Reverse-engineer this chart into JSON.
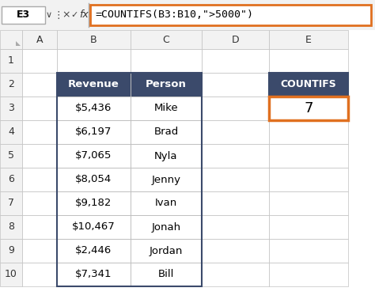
{
  "formula_bar_cell": "E3",
  "formula_bar_text": "=COUNTIFS(B3:B10,\">5000\")",
  "col_headers": [
    "A",
    "B",
    "C",
    "D",
    "E"
  ],
  "row_numbers": [
    "1",
    "2",
    "3",
    "4",
    "5",
    "6",
    "7",
    "8",
    "9",
    "10"
  ],
  "table_header_row": 2,
  "table_headers": [
    "Revenue",
    "Person"
  ],
  "table_col_b": [
    "$5,436",
    "$6,197",
    "$7,065",
    "$8,054",
    "$9,182",
    "$10,467",
    "$2,446",
    "$7,341"
  ],
  "table_col_c": [
    "Mike",
    "Brad",
    "Nyla",
    "Jenny",
    "Ivan",
    "Jonah",
    "Jordan",
    "Bill"
  ],
  "countifs_label": "COUNTIFS",
  "countifs_value": "7",
  "header_bg": "#3B4A6B",
  "header_fg": "#FFFFFF",
  "cell_bg": "#FFFFFF",
  "grid_color": "#C0C0C0",
  "row_header_bg": "#F2F2F2",
  "formula_bar_bg": "#FFFFFF",
  "formula_bar_border": "#E07020",
  "formula_result_border": "#E07020",
  "bg_color": "#FFFFFF",
  "font_size_data": 9,
  "font_size_header": 9,
  "font_size_formula": 9
}
